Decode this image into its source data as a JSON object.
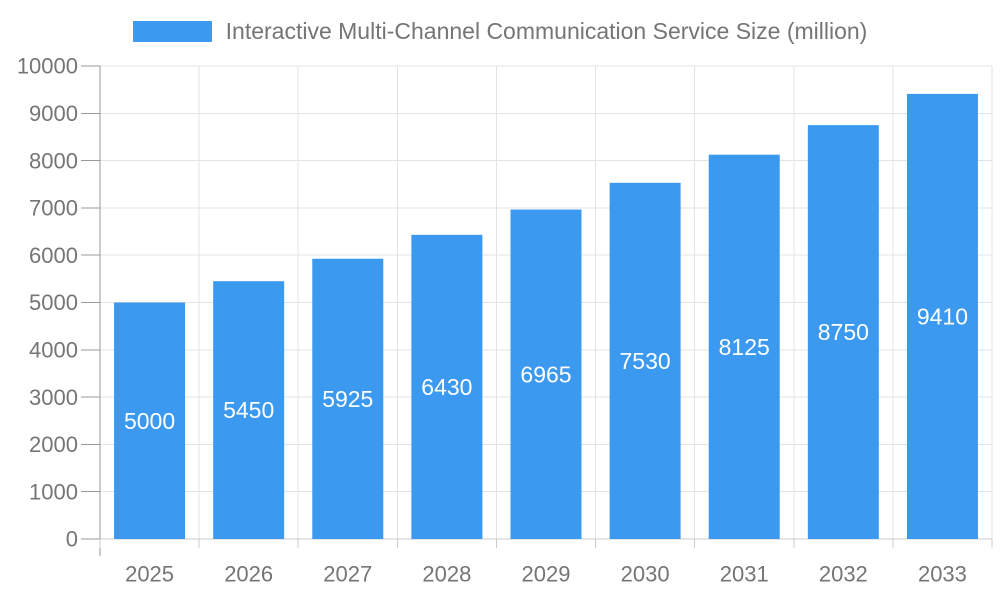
{
  "chart_data": {
    "type": "bar",
    "title": "Interactive Multi-Channel Communication Service Size (million)",
    "categories": [
      "2025",
      "2026",
      "2027",
      "2028",
      "2029",
      "2030",
      "2031",
      "2032",
      "2033"
    ],
    "values": [
      5000,
      5450,
      5925,
      6430,
      6965,
      7530,
      8125,
      8750,
      9410
    ],
    "xlabel": "",
    "ylabel": "",
    "ylim": [
      0,
      10000
    ],
    "y_tick_interval": 1000,
    "y_tick_labels": [
      "0",
      "1000",
      "2000",
      "3000",
      "4000",
      "5000",
      "6000",
      "7000",
      "8000",
      "9000",
      "10000"
    ],
    "grid": true,
    "legend_position": "top-center",
    "value_label_position": "inside-bottom-center",
    "colors": {
      "bar": "#3b99ef",
      "value_label": "#ffffff",
      "axis_text": "#757575",
      "y_axis_line": "#999999",
      "x_axis_line": "#cccccc",
      "gridline": "#e3e3e3",
      "background": "#ffffff"
    }
  }
}
